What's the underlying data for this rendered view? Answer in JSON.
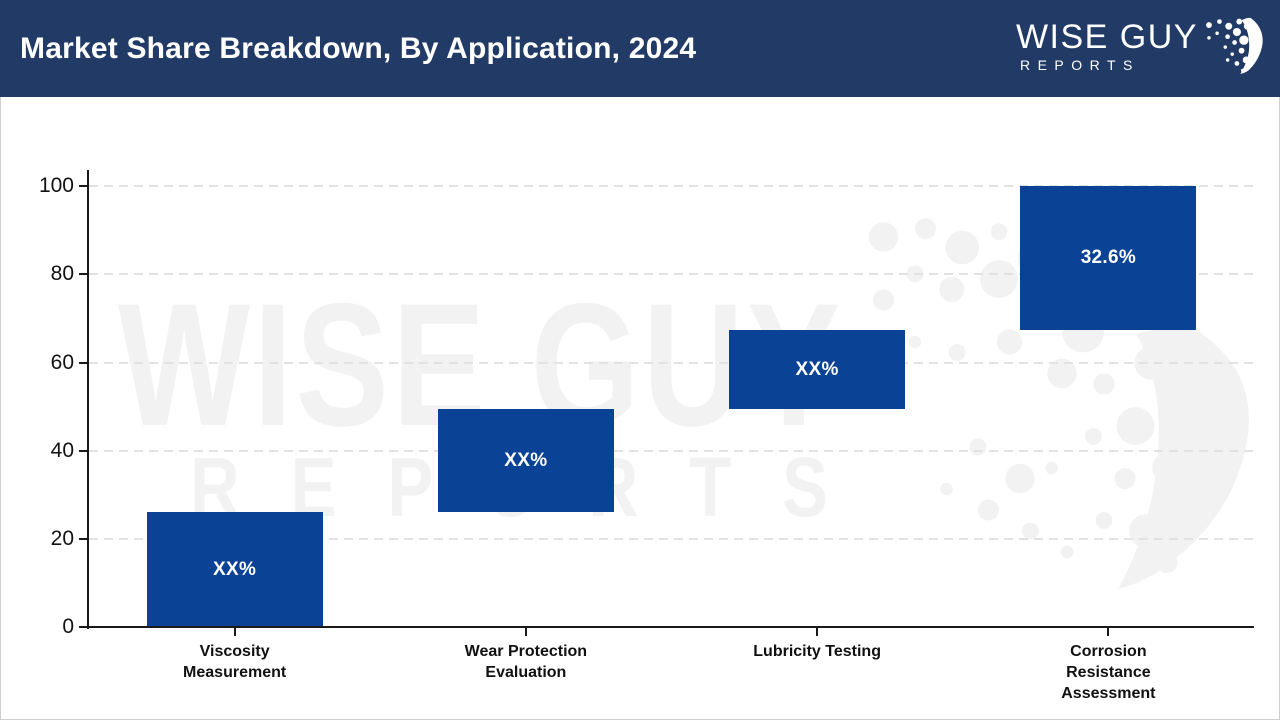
{
  "header": {
    "title": "Market Share Breakdown, By Application, 2024"
  },
  "logo": {
    "name_top": "WISE GUY",
    "name_bottom": "REPORTS"
  },
  "watermark": {
    "line1": "WISE GUY",
    "line2": "REPORTS"
  },
  "colors": {
    "header_bg": "#213a66",
    "bar": "#0a4296",
    "bar_label": "#ffffff",
    "axis": "#1a1a1a",
    "grid": "#e2e2e2",
    "watermark": "#f2f2f2",
    "tick_label": "#121212"
  },
  "chart_data": {
    "type": "bar",
    "subtype": "waterfall-floating-segments",
    "title": "Market Share Breakdown, By Application, 2024",
    "categories": [
      "Viscosity Measurement",
      "Wear Protection Evaluation",
      "Lubricity Testing",
      "Corrosion Resistance Assessment"
    ],
    "category_label_lines": [
      [
        "Viscosity",
        "Measurement"
      ],
      [
        "Wear Protection",
        "Evaluation"
      ],
      [
        "Lubricity Testing"
      ],
      [
        "Corrosion",
        "Resistance",
        "Assessment"
      ]
    ],
    "segments": [
      {
        "category": "Viscosity Measurement",
        "start": 0,
        "end": 26,
        "label": "XX%"
      },
      {
        "category": "Wear Protection Evaluation",
        "start": 26,
        "end": 49.4,
        "label": "XX%"
      },
      {
        "category": "Lubricity Testing",
        "start": 49.4,
        "end": 67.4,
        "label": "XX%"
      },
      {
        "category": "Corrosion Resistance Assessment",
        "start": 67.4,
        "end": 100,
        "label": "32.6%"
      }
    ],
    "yticks": [
      0,
      20,
      40,
      60,
      80,
      100
    ],
    "ylim": [
      0,
      103.7
    ],
    "xlabel": "",
    "ylabel": "",
    "grid": "horizontal-dashed",
    "legend": "none",
    "bar_color": "#0a4296",
    "value_label_color": "#ffffff"
  }
}
